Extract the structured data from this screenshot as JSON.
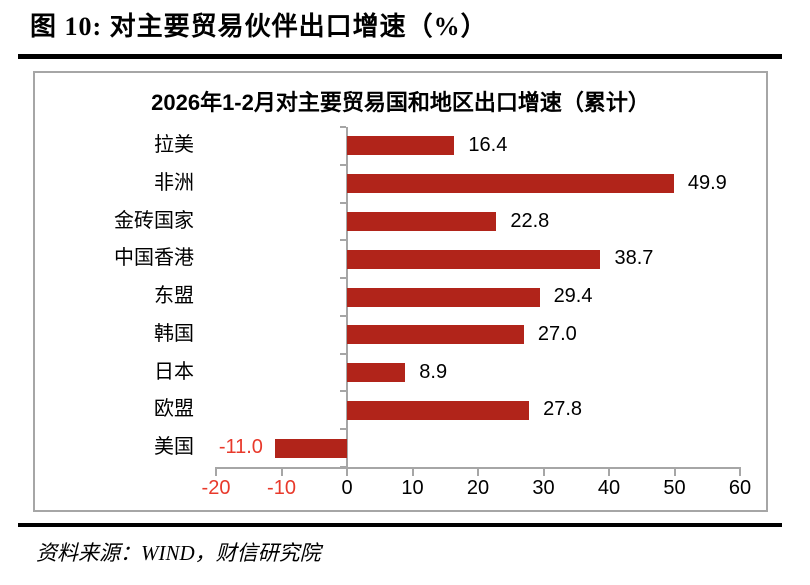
{
  "figure": {
    "title": "图 10:  对主要贸易伙伴出口增速（%）",
    "source": "资料来源：WIND，财信研究院"
  },
  "chart_data": {
    "type": "bar",
    "orientation": "horizontal",
    "title": "2026年1-2月对主要贸易国和地区出口增速（累计）",
    "categories": [
      "拉美",
      "非洲",
      "金砖国家",
      "中国香港",
      "东盟",
      "韩国",
      "日本",
      "欧盟",
      "美国"
    ],
    "values": [
      16.4,
      49.9,
      22.8,
      38.7,
      29.4,
      27.0,
      8.9,
      27.8,
      -11.0
    ],
    "value_labels": [
      "16.4",
      "49.9",
      "22.8",
      "38.7",
      "29.4",
      "27.0",
      "8.9",
      "27.8",
      "-11.0"
    ],
    "xlim": [
      -20,
      60
    ],
    "x_ticks": [
      -20,
      -10,
      0,
      10,
      20,
      30,
      40,
      50,
      60
    ],
    "grid": false,
    "legend": "none",
    "colors": {
      "bar": "#b1241a",
      "negative_label": "#e8392b",
      "axis": "#a6a6a6",
      "text": "#000000"
    }
  }
}
